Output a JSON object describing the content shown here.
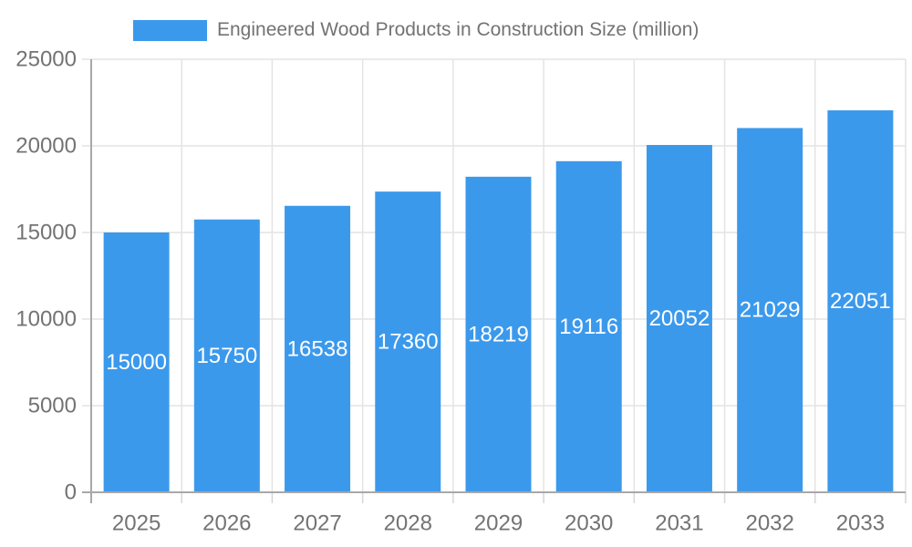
{
  "chart_data": {
    "type": "bar",
    "title": "Engineered Wood Products in Construction Size (million)",
    "categories": [
      "2025",
      "2026",
      "2027",
      "2028",
      "2029",
      "2030",
      "2031",
      "2032",
      "2033"
    ],
    "values": [
      15000,
      15750,
      16538,
      17360,
      18219,
      19116,
      20052,
      21029,
      22051
    ],
    "series": [
      {
        "name": "Engineered Wood Products in Construction Size (million)",
        "values": [
          15000,
          15750,
          16538,
          17360,
          18219,
          19116,
          20052,
          21029,
          22051
        ]
      }
    ],
    "xlabel": "",
    "ylabel": "",
    "ylim": [
      0,
      25000
    ],
    "yticks": [
      0,
      5000,
      10000,
      15000,
      20000,
      25000
    ],
    "ytick_labels": [
      "0",
      "5000",
      "10000",
      "15000",
      "20000",
      "25000"
    ],
    "grid": true,
    "legend_position": "top",
    "bar_labels_visible": true,
    "colors": {
      "bar": "#3B99EC",
      "bar_label_text": "#ffffff",
      "axis_text": "#737373",
      "gridline": "#e4e4e4",
      "axis_line": "#a8a8a8",
      "tick_mark": "#d6d6d6",
      "background": "#ffffff"
    }
  }
}
